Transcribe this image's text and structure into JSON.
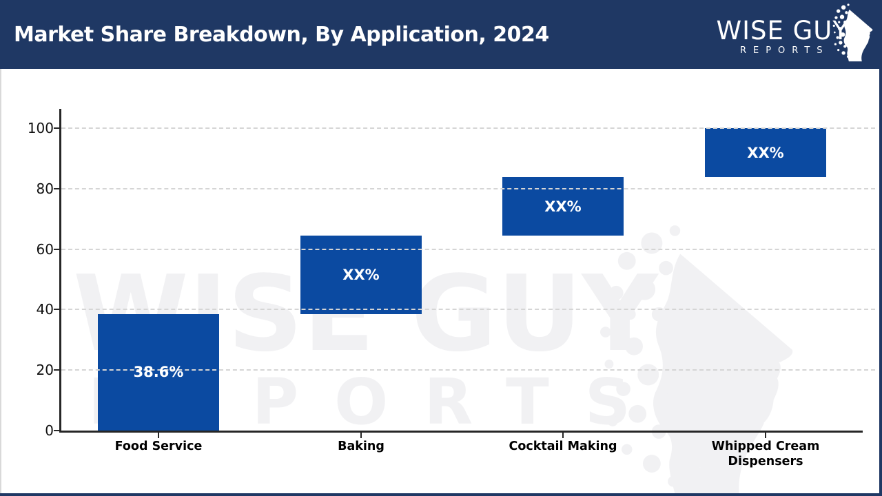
{
  "header": {
    "title": "Market Share Breakdown, By Application, 2024",
    "logo": {
      "name": "WISE GUY",
      "subname": "REPORTS"
    }
  },
  "watermark": {
    "line1": "WISE GUY",
    "line2": "REPORTS"
  },
  "chart_data": {
    "type": "bar",
    "subtype": "floating-waterfall",
    "title": "Market Share Breakdown, By Application, 2024",
    "categories": [
      "Food Service",
      "Baking",
      "Cocktail Making",
      "Whipped Cream Dispensers"
    ],
    "segments": [
      {
        "category": "Food Service",
        "start": 0,
        "end": 38.6,
        "label": "38.6%"
      },
      {
        "category": "Baking",
        "start": 38.6,
        "end": 64.4,
        "label": "XX%"
      },
      {
        "category": "Cocktail Making",
        "start": 64.4,
        "end": 83.8,
        "label": "XX%"
      },
      {
        "category": "Whipped Cream Dispensers",
        "start": 83.8,
        "end": 100,
        "label": "XX%"
      }
    ],
    "yticks": [
      0,
      20,
      40,
      60,
      80,
      100
    ],
    "ylim": [
      0,
      106
    ],
    "xlabel": "",
    "ylabel": "",
    "grid": "horizontal-dashed",
    "legend": "none",
    "bar_color": "#0b4aa1",
    "bar_label_color": "#ffffff"
  },
  "colors": {
    "header_bg": "#1f3864",
    "bar_blue": "#0b4aa1",
    "grid_gray": "#d5d5d5",
    "watermark_gray": "#f1f1f3",
    "axis_black": "#262626"
  }
}
